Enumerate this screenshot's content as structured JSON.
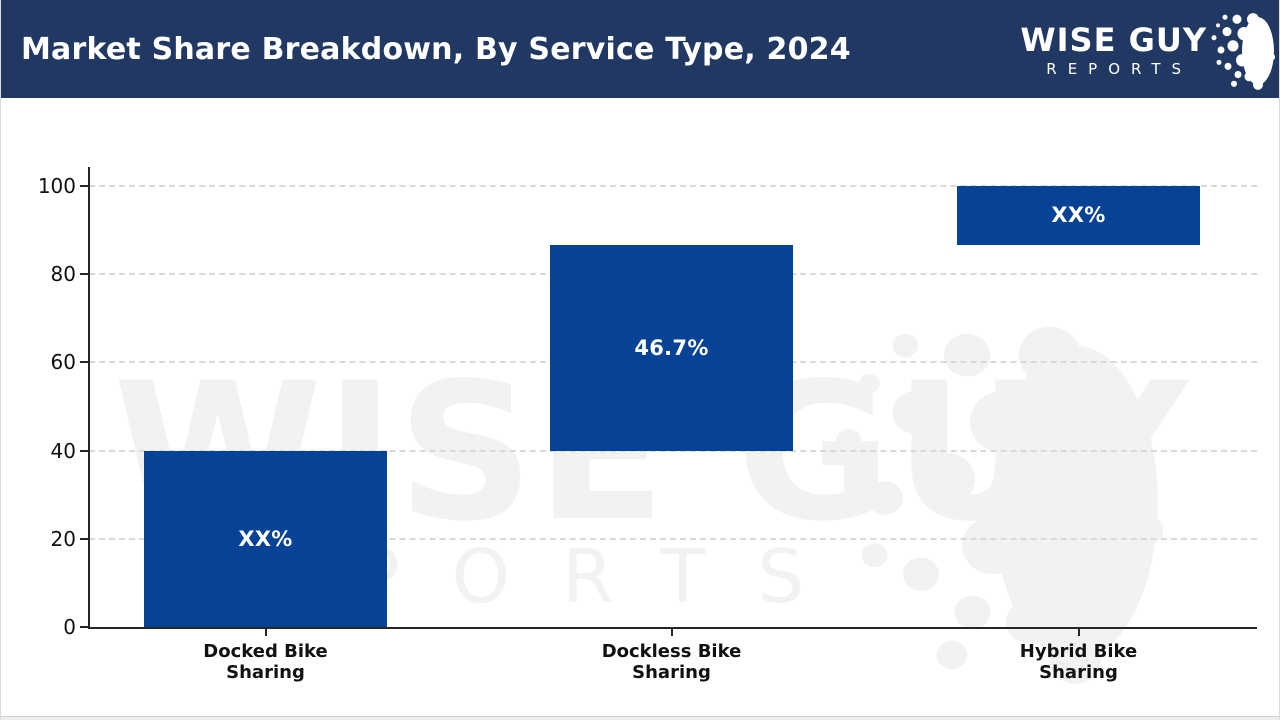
{
  "header": {
    "title": "Market Share Breakdown, By Service Type, 2024",
    "logo": {
      "line1": "WISE GUY",
      "line2": "REPORTS"
    }
  },
  "watermark": {
    "line1": "WISE GUY",
    "line2": "REPORTS"
  },
  "colors": {
    "header_bg": "#203862",
    "bar": "#064296",
    "axis": "#262626",
    "gridline": "#d9d9d9",
    "tick_text": "#111111",
    "bar_label_text": "#ffffff",
    "watermark": "#f2f2f2"
  },
  "chart_data": {
    "type": "bar",
    "subtype": "waterfall",
    "title": "Market Share Breakdown, By Service Type, 2024",
    "categories": [
      "Docked Bike Sharing",
      "Dockless Bike Sharing",
      "Hybrid Bike Sharing"
    ],
    "bars": [
      {
        "category": "Docked Bike Sharing",
        "label_lines": [
          "Docked Bike",
          "Sharing"
        ],
        "start": 0,
        "end": 40,
        "segment_value": 40,
        "value_label": "XX%"
      },
      {
        "category": "Dockless Bike Sharing",
        "label_lines": [
          "Dockless Bike",
          "Sharing"
        ],
        "start": 40,
        "end": 86.7,
        "segment_value": 46.7,
        "value_label": "46.7%"
      },
      {
        "category": "Hybrid Bike Sharing",
        "label_lines": [
          "Hybrid Bike",
          "Sharing"
        ],
        "start": 86.7,
        "end": 100,
        "segment_value": 13.3,
        "value_label": "XX%"
      }
    ],
    "xlabel": "",
    "ylabel": "",
    "ylim": [
      0,
      100
    ],
    "yticks": [
      0,
      20,
      40,
      60,
      80,
      100
    ],
    "grid": "horizontal dashed",
    "legend": "none"
  }
}
